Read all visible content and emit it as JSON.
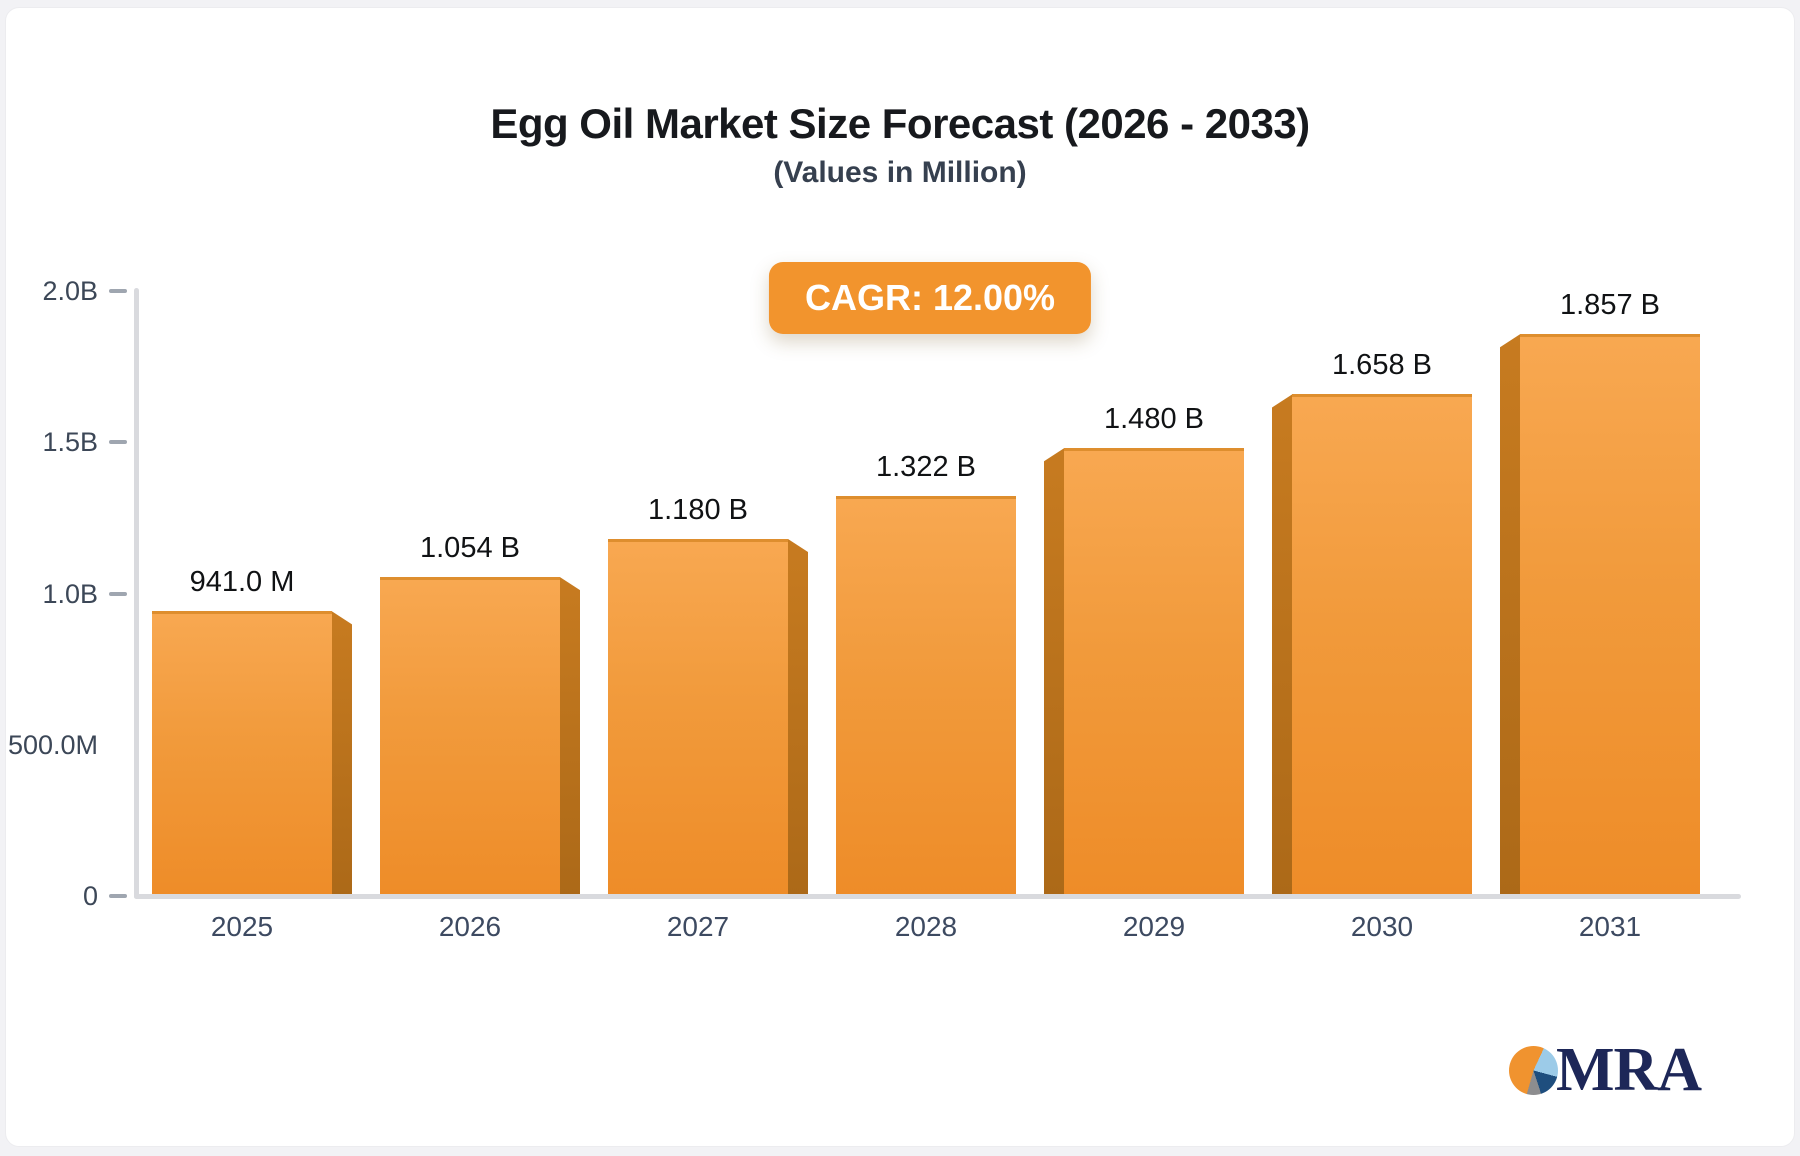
{
  "header": {
    "title": "Egg Oil Market Size Forecast (2026 - 2033)",
    "subtitle": "(Values in Million)",
    "cagr_badge": "CAGR: 12.00%",
    "badge_color": "#f2942d"
  },
  "logo": {
    "text": "MRA",
    "text_color": "#1d2758",
    "pie_colors": {
      "orange": "#f0932f",
      "light_blue": "#9ccbe8",
      "navy": "#1e4e7e",
      "gray": "#8d8d8f"
    }
  },
  "chart_data": {
    "type": "bar",
    "title": "Egg Oil Market Size Forecast (2026 - 2033)",
    "subtitle": "(Values in Million)",
    "cagr": "12.00%",
    "categories": [
      "2025",
      "2026",
      "2027",
      "2028",
      "2029",
      "2030",
      "2031"
    ],
    "values": [
      941.0,
      1054,
      1180,
      1322,
      1480,
      1658,
      1857
    ],
    "values_unit": "Million",
    "value_labels": [
      "941.0 M",
      "1.054 B",
      "1.180 B",
      "1.322 B",
      "1.480 B",
      "1.658 B",
      "1.857 B"
    ],
    "ylim": [
      0,
      2000
    ],
    "yticks": [
      {
        "label": "2.0B",
        "value": 2000,
        "dash": true
      },
      {
        "label": "1.5B",
        "value": 1500,
        "dash": true
      },
      {
        "label": "1.0B",
        "value": 1000,
        "dash": true
      },
      {
        "label": "500.0M",
        "value": 500,
        "dash": false
      },
      {
        "label": "0",
        "value": 0,
        "dash": true
      }
    ],
    "grid": false,
    "legend": "none",
    "bar_colors": {
      "face_top": "#f8a851",
      "face_bottom": "#ee8c28",
      "top_stroke": "#de8e2e",
      "side_top": "#c77b20",
      "side_bottom": "#ac6918"
    },
    "axis_color": "#d9dade",
    "tick_dash_color": "#9fa6b0",
    "tick_label_color": "#3c4757",
    "category_label_color": "#3d4a61",
    "value_label_color": "#101214"
  }
}
